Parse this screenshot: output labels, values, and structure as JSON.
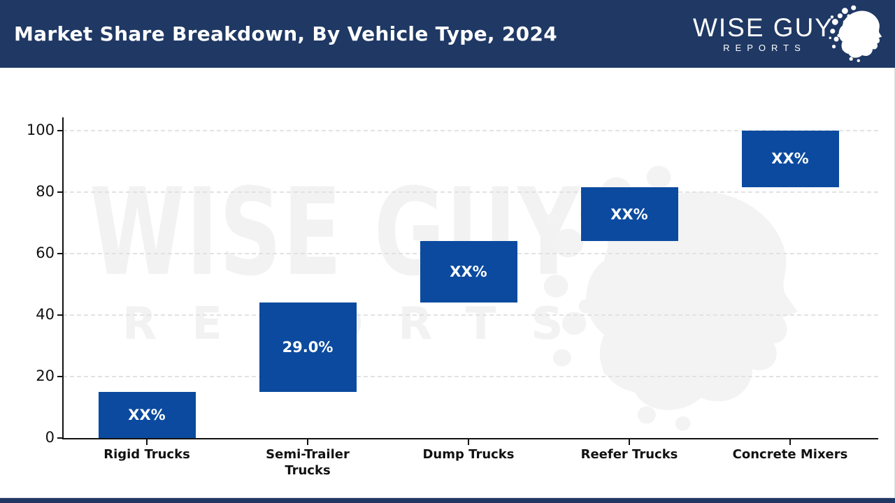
{
  "header": {
    "title": "Market Share Breakdown, By Vehicle Type, 2024",
    "logo": {
      "wordmark": "WISE GUY",
      "tagline": "REPORTS"
    }
  },
  "watermark": {
    "wordmark": "WISE GUY",
    "tagline": "REPORTS"
  },
  "colors": {
    "header_bg": "#1F3864",
    "footer_bg": "#1F3864",
    "bar_fill": "#0B4A9F",
    "bar_label_text": "#FFFFFF",
    "grid_line": "#E2E2E2",
    "axis_line": "#111111",
    "tick_label_text": "#111111",
    "watermark_gray": "#F2F2F2"
  },
  "chart_data": {
    "type": "bar",
    "variant": "waterfall",
    "title": "Market Share Breakdown, By Vehicle Type, 2024",
    "xlabel": "",
    "ylabel": "",
    "categories": [
      "Rigid Trucks",
      "Semi-Trailer\nTrucks",
      "Dump Trucks",
      "Reefer Trucks",
      "Concrete Mixers"
    ],
    "segments": [
      {
        "category": "Rigid Trucks",
        "start": 0,
        "end": 15,
        "label": "XX%"
      },
      {
        "category": "Semi-Trailer Trucks",
        "start": 15,
        "end": 44,
        "label": "29.0%"
      },
      {
        "category": "Dump Trucks",
        "start": 44,
        "end": 64,
        "label": "XX%"
      },
      {
        "category": "Reefer Trucks",
        "start": 64,
        "end": 81.5,
        "label": "XX%"
      },
      {
        "category": "Concrete Mixers",
        "start": 81.5,
        "end": 100,
        "label": "XX%"
      }
    ],
    "yticks": [
      0,
      20,
      40,
      60,
      80,
      100
    ],
    "ylim": [
      0,
      104
    ],
    "grid": "horizontal-dashed",
    "legend": "none"
  }
}
